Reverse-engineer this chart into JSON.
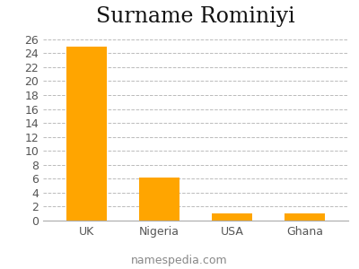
{
  "title": "Surname Rominiyi",
  "categories": [
    "UK",
    "Nigeria",
    "USA",
    "Ghana"
  ],
  "values": [
    25,
    6.2,
    1,
    1
  ],
  "bar_color": "#FFA500",
  "background_color": "#ffffff",
  "ylim": [
    0,
    27
  ],
  "yticks": [
    0,
    2,
    4,
    6,
    8,
    10,
    12,
    14,
    16,
    18,
    20,
    22,
    24,
    26
  ],
  "grid_color": "#bbbbbb",
  "title_fontsize": 17,
  "tick_fontsize": 9,
  "footer_text": "namespedia.com",
  "footer_fontsize": 9,
  "bar_width": 0.55
}
